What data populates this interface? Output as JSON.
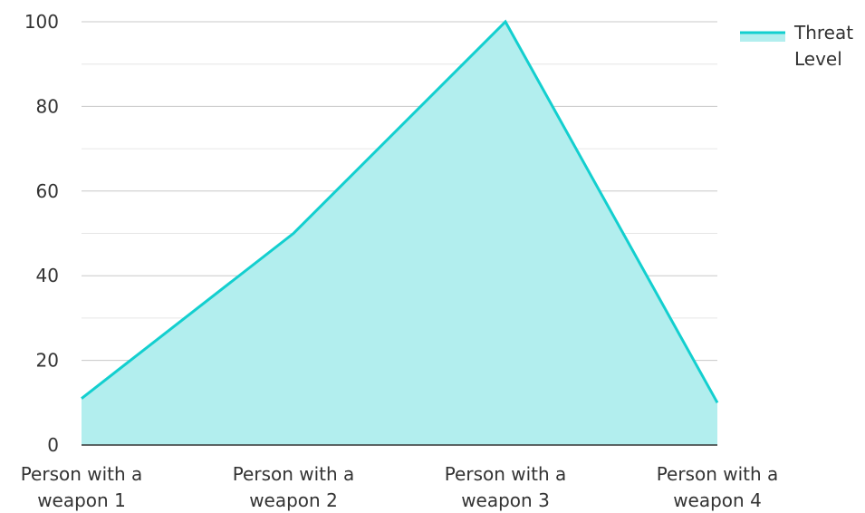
{
  "chart_data": {
    "type": "area",
    "categories": [
      [
        "Person with a",
        "weapon 1"
      ],
      [
        "Person with a",
        "weapon 2"
      ],
      [
        "Person with a",
        "weapon 3"
      ],
      [
        "Person with a",
        "weapon 4"
      ]
    ],
    "series": [
      {
        "name": "Threat Level",
        "name_lines": [
          "Threat",
          "Level"
        ],
        "values": [
          11,
          50,
          100,
          10
        ],
        "line_color": "#13cfcf",
        "fill_color": "#b2eeee"
      }
    ],
    "y_ticks": [
      0,
      20,
      40,
      60,
      80,
      100
    ],
    "ylim": [
      0,
      100
    ],
    "grid": true,
    "legend": "top-right",
    "axis_color": "#333333",
    "grid_color": "#c8c8c8",
    "minor_grid_color": "#e6e6e6"
  }
}
